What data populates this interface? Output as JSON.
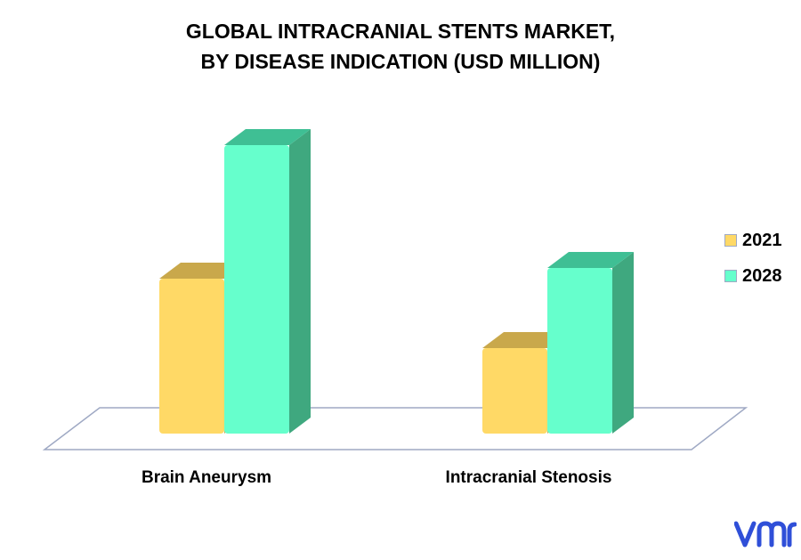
{
  "chart_data": {
    "type": "bar",
    "title_lines": [
      "GLOBAL INTRACRANIAL STENTS MARKET,",
      "BY DISEASE INDICATION (USD MILLION)"
    ],
    "categories": [
      "Brain Aneurysm",
      "Intracranial Stenosis"
    ],
    "series": [
      {
        "name": "2021",
        "values": [
          58,
          32
        ],
        "color": "#ffd966",
        "top_color": "#c9a84b"
      },
      {
        "name": "2028",
        "values": [
          108,
          62
        ],
        "color": "#66ffcc",
        "top_color": "#3fbf94",
        "side_color": "#3fa87f"
      }
    ],
    "ylim": [
      0,
      120
    ],
    "legend_position": "right",
    "grid": false,
    "style": "3d"
  },
  "logo": {
    "name": "vmr-logo",
    "text": "vmr",
    "color": "#2f4fd8"
  }
}
